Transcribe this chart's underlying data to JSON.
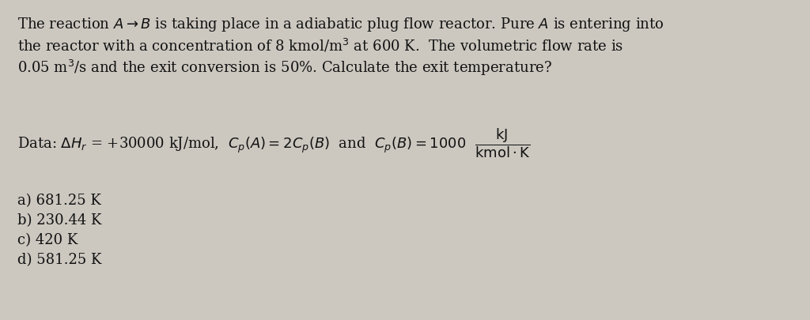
{
  "bg_color": "#ccc8c0",
  "text_color": "#111111",
  "fig_width": 10.24,
  "fig_height": 4.05,
  "dpi": 100,
  "font_size": 13.0,
  "line1": "The reaction $A \\rightarrow B$ is taking place in a adiabatic plug flow reactor. Pure $A$ is entering into",
  "line2": "the reactor with a concentration of 8 kmol/m$^3$ at 600 K.  The volumetric flow rate is",
  "line3": "0.05 m$^3$/s and the exit conversion is 50%. Calculate the exit temperature?",
  "data_line1": "Data: $\\Delta H_r$ = +30000 kJ/mol,  $C_p(A) = 2C_p(B)$  and  $C_p(B) = 1000 \\ \\ \\dfrac{\\mathrm{kJ}}{\\mathrm{kmol}\\cdot\\mathrm{K}}$",
  "ans_a": "a) 681.25 K",
  "ans_b": "b) 230.44 K",
  "ans_c": "c) 420 K",
  "ans_d": "d) 581.25 K"
}
